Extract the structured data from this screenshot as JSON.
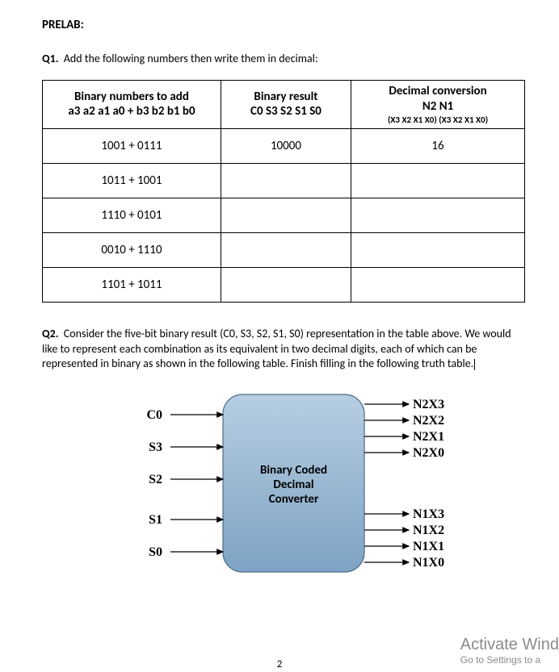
{
  "prelab_heading": "PRELAB:",
  "q1": {
    "label": "Q1.",
    "text": "Add the following numbers then write them in decimal:"
  },
  "table": {
    "headers": {
      "c1_line1": "Binary numbers to add",
      "c1_line2": "a3 a2 a1 a0 + b3 b2 b1 b0",
      "c2_line1": "Binary result",
      "c2_line2": "C0 S3 S2 S1 S0",
      "c3_line1": "Decimal conversion",
      "c3_line2": "N2 N1",
      "c3_line3": "(X3 X2 X1 X0) (X3 X2 X1 X0)"
    },
    "rows": [
      {
        "a": "1001 + 0111",
        "b": "10000",
        "c": "16"
      },
      {
        "a": "1011 + 1001",
        "b": "",
        "c": ""
      },
      {
        "a": "1110 + 0101",
        "b": "",
        "c": ""
      },
      {
        "a": "0010 + 1110",
        "b": "",
        "c": ""
      },
      {
        "a": "1101 + 1011",
        "b": "",
        "c": ""
      }
    ]
  },
  "q2": {
    "label": "Q2.",
    "text": "Consider the five-bit binary result (C0, S3, S2, S1, S0) representation in the table above.  We would like to represent each combination as its equivalent in two decimal digits, each of which can be represented in binary as shown in the following table.  Finish filling in the following truth table."
  },
  "diagram": {
    "box_fill": "#9ab7d4",
    "box_stroke": "#4a6b8a",
    "box_label_l1": "Binary Coded",
    "box_label_l2": "Decimal",
    "box_label_l3": "Converter",
    "inputs": [
      "C0",
      "S3",
      "S2",
      "S1",
      "S0"
    ],
    "outputs_top": [
      "N2X3",
      "N2X2",
      "N2X1",
      "N2X0"
    ],
    "outputs_bot": [
      "N1X3",
      "N1X2",
      "N1X1",
      "N1X0"
    ]
  },
  "watermark": {
    "line1": "Activate Wind",
    "line2": "Go to Settings to a"
  },
  "page_number": "2"
}
